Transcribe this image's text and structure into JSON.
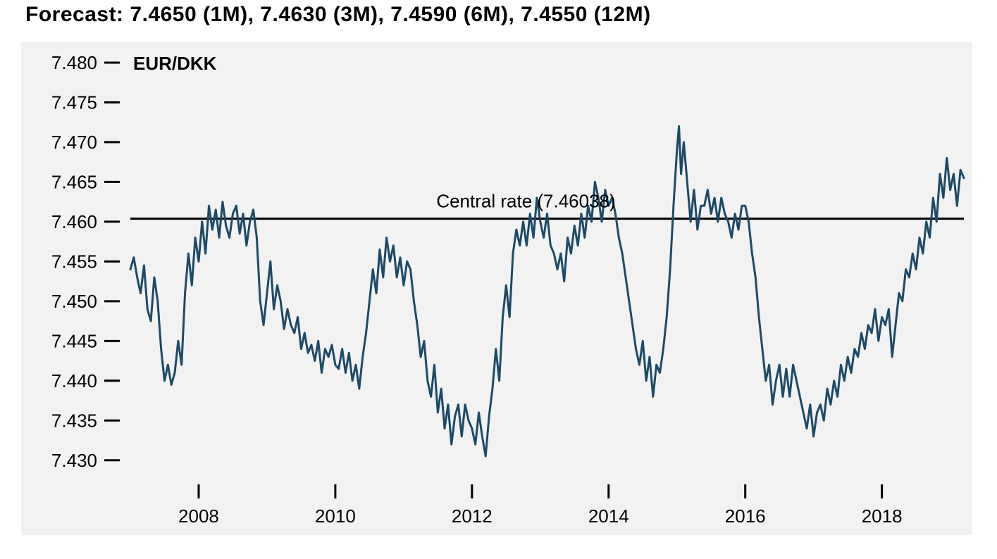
{
  "title": "Forecast: 7.4650 (1M), 7.4630 (3M), 7.4590 (6M), 7.4550 (12M)",
  "chart": {
    "type": "line",
    "series_label": "EUR/DKK",
    "central_rate_label": "Central rate (7.46038)",
    "central_rate_value": 7.46038,
    "background_color": "#f2f2f2",
    "plot_background": "#f2f2f2",
    "line_color": "#1d4a66",
    "line_width": 3,
    "central_line_color": "#000000",
    "central_line_width": 3,
    "tick_color": "#000000",
    "tick_font_size": 26,
    "series_label_fontsize": 26,
    "central_label_fontsize": 26,
    "y_min": 7.4275,
    "y_max": 7.4815,
    "y_ticks": [
      7.43,
      7.435,
      7.44,
      7.445,
      7.45,
      7.455,
      7.46,
      7.465,
      7.47,
      7.475,
      7.48
    ],
    "y_tick_labels": [
      "7.430",
      "7.435",
      "7.440",
      "7.445",
      "7.450",
      "7.455",
      "7.460",
      "7.465",
      "7.470",
      "7.475",
      "7.480"
    ],
    "x_min": 2007.0,
    "x_max": 2019.2,
    "x_ticks": [
      2008,
      2010,
      2012,
      2014,
      2016,
      2018
    ],
    "x_tick_labels": [
      "2008",
      "2010",
      "2012",
      "2014",
      "2016",
      "2018"
    ],
    "data": [
      [
        2007.0,
        7.454
      ],
      [
        2007.05,
        7.4555
      ],
      [
        2007.1,
        7.453
      ],
      [
        2007.15,
        7.451
      ],
      [
        2007.2,
        7.4545
      ],
      [
        2007.25,
        7.449
      ],
      [
        2007.3,
        7.4475
      ],
      [
        2007.35,
        7.453
      ],
      [
        2007.4,
        7.45
      ],
      [
        2007.45,
        7.444
      ],
      [
        2007.5,
        7.44
      ],
      [
        2007.55,
        7.442
      ],
      [
        2007.6,
        7.4395
      ],
      [
        2007.65,
        7.441
      ],
      [
        2007.7,
        7.445
      ],
      [
        2007.75,
        7.442
      ],
      [
        2007.8,
        7.451
      ],
      [
        2007.85,
        7.456
      ],
      [
        2007.9,
        7.452
      ],
      [
        2007.95,
        7.458
      ],
      [
        2008.0,
        7.455
      ],
      [
        2008.05,
        7.46
      ],
      [
        2008.1,
        7.456
      ],
      [
        2008.15,
        7.462
      ],
      [
        2008.2,
        7.459
      ],
      [
        2008.25,
        7.4615
      ],
      [
        2008.3,
        7.458
      ],
      [
        2008.35,
        7.4625
      ],
      [
        2008.4,
        7.4595
      ],
      [
        2008.45,
        7.458
      ],
      [
        2008.5,
        7.461
      ],
      [
        2008.55,
        7.462
      ],
      [
        2008.6,
        7.4585
      ],
      [
        2008.65,
        7.461
      ],
      [
        2008.7,
        7.457
      ],
      [
        2008.75,
        7.46
      ],
      [
        2008.8,
        7.4615
      ],
      [
        2008.85,
        7.458
      ],
      [
        2008.9,
        7.45
      ],
      [
        2008.95,
        7.447
      ],
      [
        2009.0,
        7.451
      ],
      [
        2009.05,
        7.455
      ],
      [
        2009.1,
        7.449
      ],
      [
        2009.15,
        7.452
      ],
      [
        2009.2,
        7.45
      ],
      [
        2009.25,
        7.4465
      ],
      [
        2009.3,
        7.449
      ],
      [
        2009.35,
        7.447
      ],
      [
        2009.4,
        7.446
      ],
      [
        2009.45,
        7.448
      ],
      [
        2009.5,
        7.444
      ],
      [
        2009.55,
        7.446
      ],
      [
        2009.6,
        7.4435
      ],
      [
        2009.65,
        7.4445
      ],
      [
        2009.7,
        7.4425
      ],
      [
        2009.75,
        7.445
      ],
      [
        2009.8,
        7.441
      ],
      [
        2009.85,
        7.444
      ],
      [
        2009.9,
        7.443
      ],
      [
        2009.95,
        7.4445
      ],
      [
        2010.0,
        7.442
      ],
      [
        2010.05,
        7.4415
      ],
      [
        2010.1,
        7.444
      ],
      [
        2010.15,
        7.441
      ],
      [
        2010.2,
        7.4435
      ],
      [
        2010.25,
        7.44
      ],
      [
        2010.3,
        7.442
      ],
      [
        2010.35,
        7.439
      ],
      [
        2010.4,
        7.443
      ],
      [
        2010.45,
        7.446
      ],
      [
        2010.5,
        7.45
      ],
      [
        2010.55,
        7.454
      ],
      [
        2010.6,
        7.451
      ],
      [
        2010.65,
        7.4565
      ],
      [
        2010.7,
        7.453
      ],
      [
        2010.75,
        7.458
      ],
      [
        2010.8,
        7.455
      ],
      [
        2010.85,
        7.457
      ],
      [
        2010.9,
        7.453
      ],
      [
        2010.95,
        7.4555
      ],
      [
        2011.0,
        7.452
      ],
      [
        2011.05,
        7.455
      ],
      [
        2011.1,
        7.454
      ],
      [
        2011.15,
        7.45
      ],
      [
        2011.2,
        7.447
      ],
      [
        2011.25,
        7.443
      ],
      [
        2011.3,
        7.445
      ],
      [
        2011.35,
        7.44
      ],
      [
        2011.4,
        7.438
      ],
      [
        2011.45,
        7.442
      ],
      [
        2011.5,
        7.436
      ],
      [
        2011.55,
        7.439
      ],
      [
        2011.6,
        7.434
      ],
      [
        2011.65,
        7.437
      ],
      [
        2011.7,
        7.432
      ],
      [
        2011.75,
        7.4355
      ],
      [
        2011.8,
        7.437
      ],
      [
        2011.85,
        7.433
      ],
      [
        2011.9,
        7.437
      ],
      [
        2011.95,
        7.435
      ],
      [
        2012.0,
        7.434
      ],
      [
        2012.05,
        7.432
      ],
      [
        2012.1,
        7.436
      ],
      [
        2012.15,
        7.433
      ],
      [
        2012.2,
        7.4305
      ],
      [
        2012.25,
        7.4355
      ],
      [
        2012.3,
        7.439
      ],
      [
        2012.35,
        7.444
      ],
      [
        2012.4,
        7.44
      ],
      [
        2012.45,
        7.448
      ],
      [
        2012.5,
        7.452
      ],
      [
        2012.55,
        7.448
      ],
      [
        2012.6,
        7.456
      ],
      [
        2012.65,
        7.459
      ],
      [
        2012.7,
        7.457
      ],
      [
        2012.75,
        7.46
      ],
      [
        2012.8,
        7.457
      ],
      [
        2012.85,
        7.461
      ],
      [
        2012.9,
        7.458
      ],
      [
        2012.95,
        7.463
      ],
      [
        2013.0,
        7.46
      ],
      [
        2013.05,
        7.458
      ],
      [
        2013.1,
        7.461
      ],
      [
        2013.15,
        7.457
      ],
      [
        2013.2,
        7.456
      ],
      [
        2013.25,
        7.454
      ],
      [
        2013.3,
        7.456
      ],
      [
        2013.35,
        7.4525
      ],
      [
        2013.4,
        7.458
      ],
      [
        2013.45,
        7.456
      ],
      [
        2013.5,
        7.4595
      ],
      [
        2013.55,
        7.457
      ],
      [
        2013.6,
        7.461
      ],
      [
        2013.65,
        7.458
      ],
      [
        2013.7,
        7.462
      ],
      [
        2013.75,
        7.46
      ],
      [
        2013.8,
        7.465
      ],
      [
        2013.85,
        7.463
      ],
      [
        2013.9,
        7.46
      ],
      [
        2013.95,
        7.464
      ],
      [
        2014.0,
        7.462
      ],
      [
        2014.05,
        7.463
      ],
      [
        2014.1,
        7.461
      ],
      [
        2014.15,
        7.458
      ],
      [
        2014.2,
        7.456
      ],
      [
        2014.25,
        7.453
      ],
      [
        2014.3,
        7.45
      ],
      [
        2014.35,
        7.447
      ],
      [
        2014.4,
        7.444
      ],
      [
        2014.45,
        7.442
      ],
      [
        2014.5,
        7.445
      ],
      [
        2014.55,
        7.44
      ],
      [
        2014.6,
        7.443
      ],
      [
        2014.65,
        7.438
      ],
      [
        2014.7,
        7.442
      ],
      [
        2014.75,
        7.441
      ],
      [
        2014.8,
        7.444
      ],
      [
        2014.85,
        7.448
      ],
      [
        2014.9,
        7.454
      ],
      [
        2014.95,
        7.462
      ],
      [
        2015.0,
        7.469
      ],
      [
        2015.03,
        7.472
      ],
      [
        2015.06,
        7.466
      ],
      [
        2015.1,
        7.47
      ],
      [
        2015.15,
        7.465
      ],
      [
        2015.2,
        7.46
      ],
      [
        2015.25,
        7.464
      ],
      [
        2015.3,
        7.459
      ],
      [
        2015.35,
        7.462
      ],
      [
        2015.4,
        7.462
      ],
      [
        2015.45,
        7.464
      ],
      [
        2015.5,
        7.461
      ],
      [
        2015.55,
        7.463
      ],
      [
        2015.6,
        7.46
      ],
      [
        2015.65,
        7.463
      ],
      [
        2015.7,
        7.461
      ],
      [
        2015.75,
        7.46
      ],
      [
        2015.8,
        7.458
      ],
      [
        2015.85,
        7.461
      ],
      [
        2015.9,
        7.459
      ],
      [
        2015.95,
        7.462
      ],
      [
        2016.0,
        7.462
      ],
      [
        2016.05,
        7.46
      ],
      [
        2016.1,
        7.456
      ],
      [
        2016.15,
        7.453
      ],
      [
        2016.2,
        7.448
      ],
      [
        2016.25,
        7.444
      ],
      [
        2016.3,
        7.44
      ],
      [
        2016.35,
        7.442
      ],
      [
        2016.4,
        7.437
      ],
      [
        2016.45,
        7.44
      ],
      [
        2016.5,
        7.442
      ],
      [
        2016.55,
        7.438
      ],
      [
        2016.6,
        7.4415
      ],
      [
        2016.65,
        7.438
      ],
      [
        2016.7,
        7.442
      ],
      [
        2016.75,
        7.44
      ],
      [
        2016.8,
        7.438
      ],
      [
        2016.85,
        7.436
      ],
      [
        2016.9,
        7.434
      ],
      [
        2016.95,
        7.437
      ],
      [
        2017.0,
        7.433
      ],
      [
        2017.05,
        7.436
      ],
      [
        2017.1,
        7.437
      ],
      [
        2017.15,
        7.435
      ],
      [
        2017.2,
        7.439
      ],
      [
        2017.25,
        7.437
      ],
      [
        2017.3,
        7.44
      ],
      [
        2017.35,
        7.438
      ],
      [
        2017.4,
        7.442
      ],
      [
        2017.45,
        7.44
      ],
      [
        2017.5,
        7.443
      ],
      [
        2017.55,
        7.441
      ],
      [
        2017.6,
        7.444
      ],
      [
        2017.65,
        7.443
      ],
      [
        2017.7,
        7.446
      ],
      [
        2017.75,
        7.444
      ],
      [
        2017.8,
        7.447
      ],
      [
        2017.85,
        7.446
      ],
      [
        2017.9,
        7.449
      ],
      [
        2017.95,
        7.445
      ],
      [
        2018.0,
        7.448
      ],
      [
        2018.05,
        7.447
      ],
      [
        2018.1,
        7.449
      ],
      [
        2018.15,
        7.443
      ],
      [
        2018.2,
        7.447
      ],
      [
        2018.25,
        7.451
      ],
      [
        2018.3,
        7.45
      ],
      [
        2018.35,
        7.454
      ],
      [
        2018.4,
        7.453
      ],
      [
        2018.45,
        7.456
      ],
      [
        2018.5,
        7.454
      ],
      [
        2018.55,
        7.458
      ],
      [
        2018.6,
        7.456
      ],
      [
        2018.65,
        7.46
      ],
      [
        2018.7,
        7.458
      ],
      [
        2018.75,
        7.463
      ],
      [
        2018.8,
        7.46
      ],
      [
        2018.85,
        7.466
      ],
      [
        2018.9,
        7.463
      ],
      [
        2018.95,
        7.468
      ],
      [
        2019.0,
        7.464
      ],
      [
        2019.05,
        7.466
      ],
      [
        2019.1,
        7.462
      ],
      [
        2019.15,
        7.4665
      ],
      [
        2019.2,
        7.4655
      ]
    ]
  }
}
